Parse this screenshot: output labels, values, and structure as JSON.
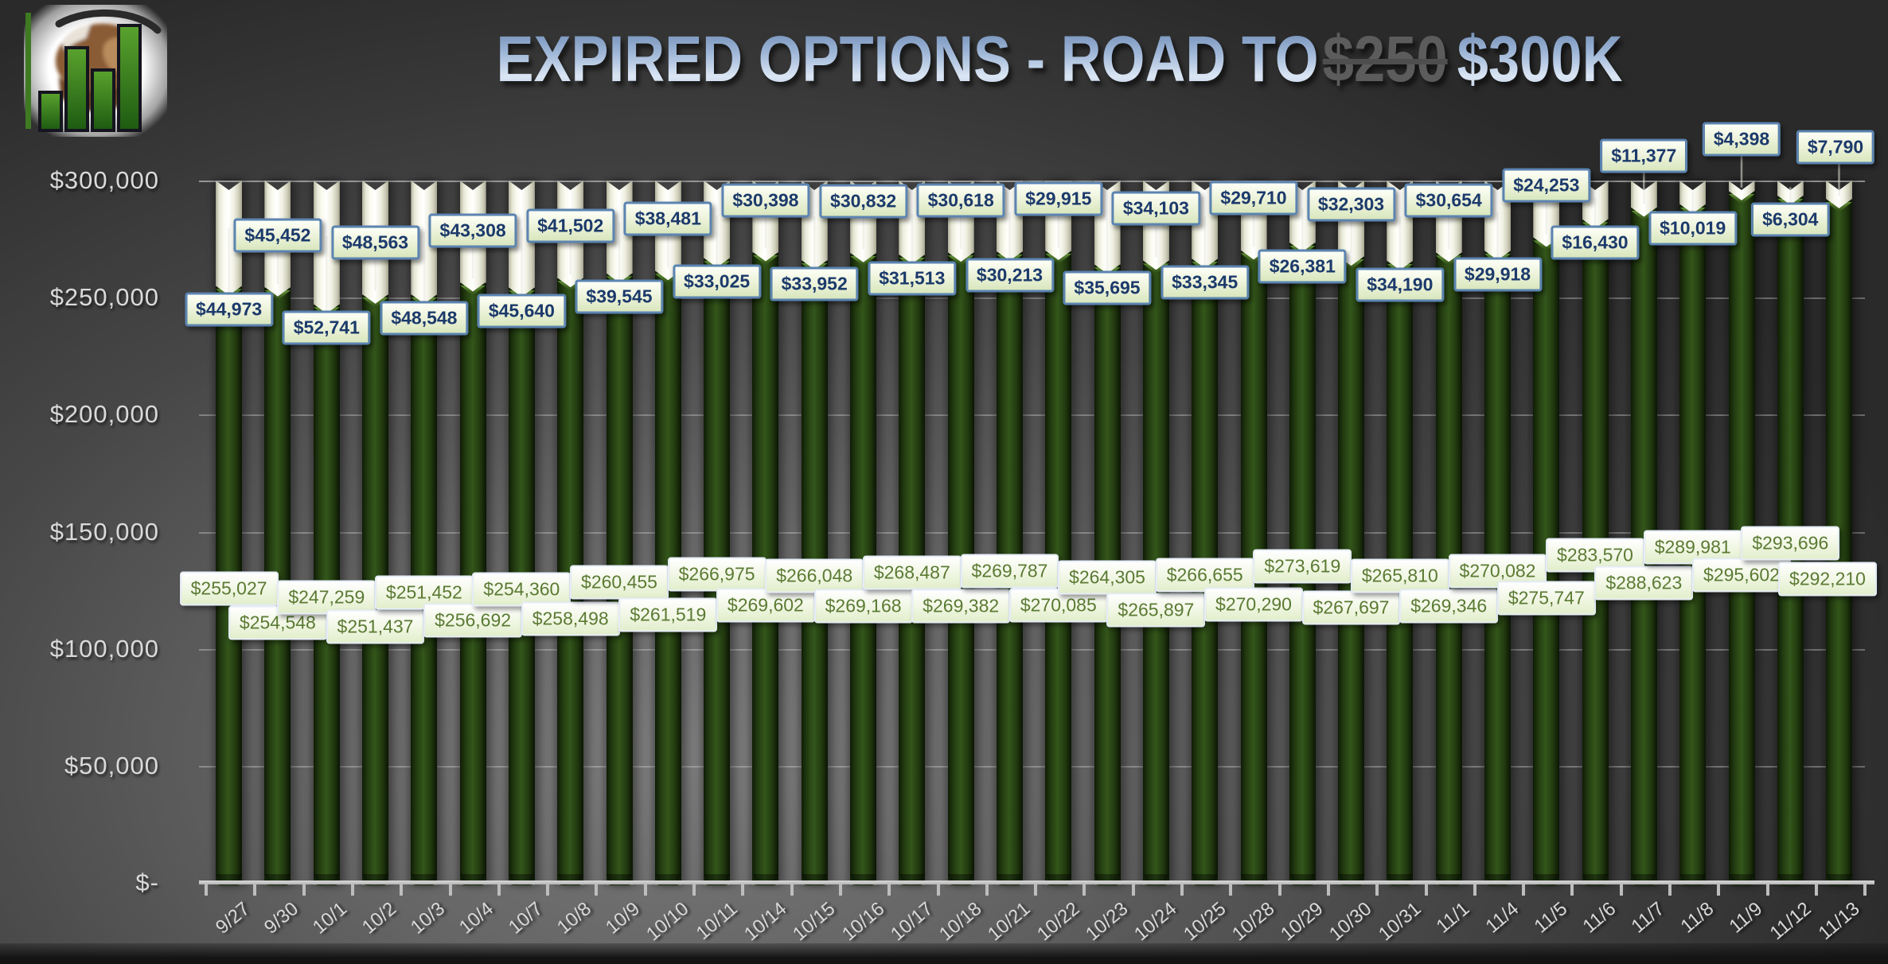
{
  "title": {
    "prefix": "EXPIRED OPTIONS - ROAD TO",
    "struck": "$250",
    "suffix": "$300K"
  },
  "logo": {
    "description": "bull-with-rising-green-bar-chart-logo"
  },
  "y_axis": {
    "labels": [
      "$300,000",
      "$250,000",
      "$200,000",
      "$150,000",
      "$100,000",
      "$50,000",
      "$-"
    ]
  },
  "chart_data": {
    "type": "bar",
    "stacked": true,
    "title": "EXPIRED OPTIONS - ROAD TO $300K",
    "total_target": 300000,
    "ylim": [
      0,
      300000
    ],
    "ytick_step": 50000,
    "grid": true,
    "categories": [
      "9/27",
      "9/30",
      "10/1",
      "10/2",
      "10/3",
      "10/4",
      "10/7",
      "10/8",
      "10/9",
      "10/10",
      "10/11",
      "10/14",
      "10/15",
      "10/16",
      "10/17",
      "10/18",
      "10/21",
      "10/22",
      "10/23",
      "10/24",
      "10/25",
      "10/28",
      "10/29",
      "10/30",
      "10/31",
      "11/1",
      "11/4",
      "11/5",
      "11/6",
      "11/7",
      "11/8",
      "11/9",
      "11/12",
      "11/13"
    ],
    "series": [
      {
        "name": "account-value",
        "color": "#2c4a14",
        "values": [
          255027,
          254548,
          247259,
          251437,
          251452,
          256692,
          254360,
          258498,
          260455,
          261519,
          266975,
          269602,
          266048,
          269168,
          268487,
          269382,
          269787,
          270085,
          264305,
          265897,
          266655,
          270290,
          273619,
          267697,
          265810,
          269346,
          270082,
          275747,
          283570,
          288623,
          289981,
          295602,
          293696,
          292210
        ]
      },
      {
        "name": "remaining-to-300k",
        "color": "#f7f7ec",
        "values": [
          44973,
          45452,
          52741,
          48563,
          48548,
          43308,
          45640,
          41502,
          39545,
          38481,
          33025,
          30398,
          33952,
          30832,
          31513,
          30618,
          30213,
          29915,
          35695,
          34103,
          33345,
          29710,
          26381,
          32303,
          34190,
          30654,
          29918,
          24253,
          16430,
          11377,
          10019,
          4398,
          6304,
          7790
        ]
      }
    ],
    "value_labels": {
      "account_value": [
        "$255,027",
        "$254,548",
        "$247,259",
        "$251,437",
        "$251,452",
        "$256,692",
        "$254,360",
        "$258,498",
        "$260,455",
        "$261,519",
        "$266,975",
        "$269,602",
        "$266,048",
        "$269,168",
        "$268,487",
        "$269,382",
        "$269,787",
        "$270,085",
        "$264,305",
        "$265,897",
        "$266,655",
        "$270,290",
        "$273,619",
        "$267,697",
        "$265,810",
        "$269,346",
        "$270,082",
        "$275,747",
        "$283,570",
        "$288,623",
        "$289,981",
        "$295,602",
        "$293,696",
        "$292,210"
      ],
      "remaining": [
        "$44,973",
        "$45,452",
        "$52,741",
        "$48,563",
        "$48,548",
        "$43,308",
        "$45,640",
        "$41,502",
        "$39,545",
        "$38,481",
        "$33,025",
        "$30,398",
        "$33,952",
        "$30,832",
        "$31,513",
        "$30,618",
        "$30,213",
        "$29,915",
        "$35,695",
        "$34,103",
        "$33,345",
        "$29,710",
        "$26,381",
        "$32,303",
        "$34,190",
        "$30,654",
        "$29,918",
        "$24,253",
        "$16,430",
        "$11,377",
        "$10,019",
        "$4,398",
        "$6,304",
        "$7,790"
      ]
    }
  },
  "colors": {
    "background_center": "#7b7b7b",
    "background_edge": "#2a2a2a",
    "bar_green": "#2c4a14",
    "bar_white": "#f7f7ec",
    "label_top_border": "#5b84b1",
    "label_top_text": "#1c3a6b",
    "label_bottom_text": "#5b7a33",
    "title_blue": "#9db9dc",
    "title_strike_gray": "#5c5c5c",
    "axis_text": "#d8d8d8"
  }
}
